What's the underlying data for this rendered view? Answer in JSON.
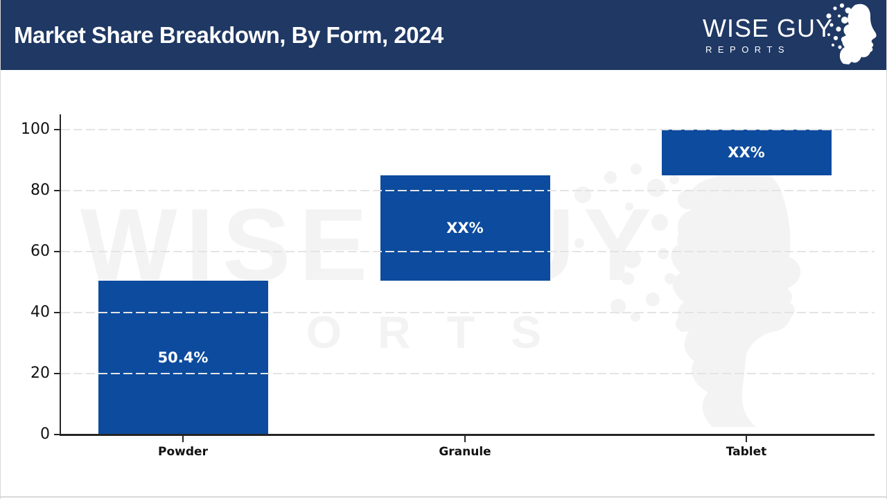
{
  "header": {
    "bg": "#1f3864",
    "title": "Market Share Breakdown, By Form, 2024",
    "logo": {
      "name_line": "WISE GUY",
      "sub_line": "REPORTS"
    }
  },
  "watermark": {
    "name_line": "WISE GUY",
    "sub_line": "REPORTS"
  },
  "chart_data": {
    "type": "bar",
    "subtype": "floating-waterfall-segments",
    "title": "Market Share Breakdown, By Form, 2024",
    "categories": [
      "Powder",
      "Granule",
      "Tablet"
    ],
    "series": [
      {
        "name": "Market share (%)",
        "segments": [
          {
            "category": "Powder",
            "start": 0,
            "end": 50.4,
            "label": "50.4%"
          },
          {
            "category": "Granule",
            "start": 50.4,
            "end": 85,
            "label": "XX%"
          },
          {
            "category": "Tablet",
            "start": 85,
            "end": 100,
            "label": "XX%"
          }
        ]
      }
    ],
    "ylim": [
      0,
      100
    ],
    "yticks": [
      0,
      20,
      40,
      60,
      80,
      100
    ],
    "grid": "horizontal-dashed",
    "legend": "none",
    "bar_color": "#0c4b9e",
    "bar_label_color": "#ffffff",
    "axis_color": "#262626",
    "gridline_color": "#e4e4e4",
    "header_bg_color": "#1f3864"
  }
}
